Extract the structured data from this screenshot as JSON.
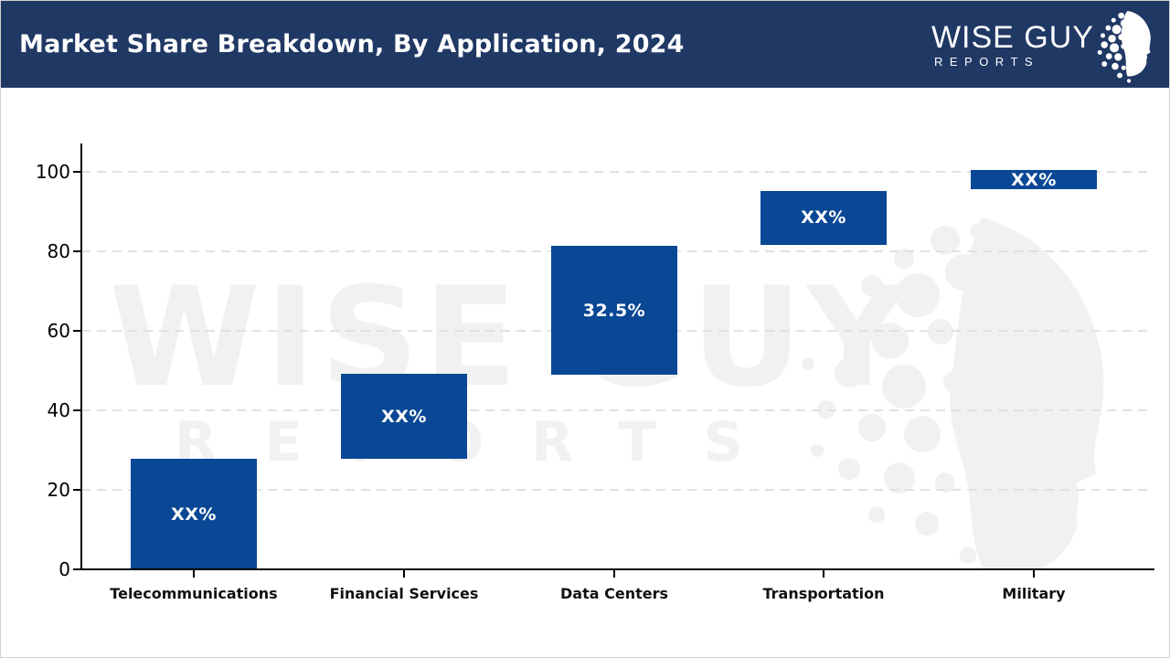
{
  "header": {
    "title": "Market Share Breakdown, By Application, 2024",
    "logo": {
      "line1": "WISE GUY",
      "line2": "REPORTS"
    }
  },
  "watermark": {
    "line1": "WISE GUY",
    "line2": "REPORTS"
  },
  "colors": {
    "header_bg": "#203864",
    "bar": "#0a4795",
    "grid": "#e1e1e1",
    "axis": "#000000",
    "bar_label": "#ffffff",
    "watermark": "#f1f1f1"
  },
  "chart_data": {
    "type": "bar",
    "subtype": "floating-waterfall",
    "title": "Market Share Breakdown, By Application, 2024",
    "categories": [
      "Telecommunications",
      "Financial Services",
      "Data Centers",
      "Transportation",
      "Military"
    ],
    "bars": [
      {
        "category": "Telecommunications",
        "start": 0,
        "end": 27.8,
        "label": "XX%"
      },
      {
        "category": "Financial Services",
        "start": 27.8,
        "end": 49.2,
        "label": "XX%"
      },
      {
        "category": "Data Centers",
        "start": 48.9,
        "end": 81.4,
        "label": "32.5%"
      },
      {
        "category": "Transportation",
        "start": 81.6,
        "end": 95.2,
        "label": "XX%"
      },
      {
        "category": "Military",
        "start": 95.6,
        "end": 100.4,
        "label": "XX%"
      }
    ],
    "yticks": [
      0,
      20,
      40,
      60,
      80,
      100
    ],
    "ylim": [
      0,
      106.2
    ],
    "xlabel": "",
    "ylabel": "",
    "grid": "dashed-horizontal",
    "legend": "none"
  }
}
